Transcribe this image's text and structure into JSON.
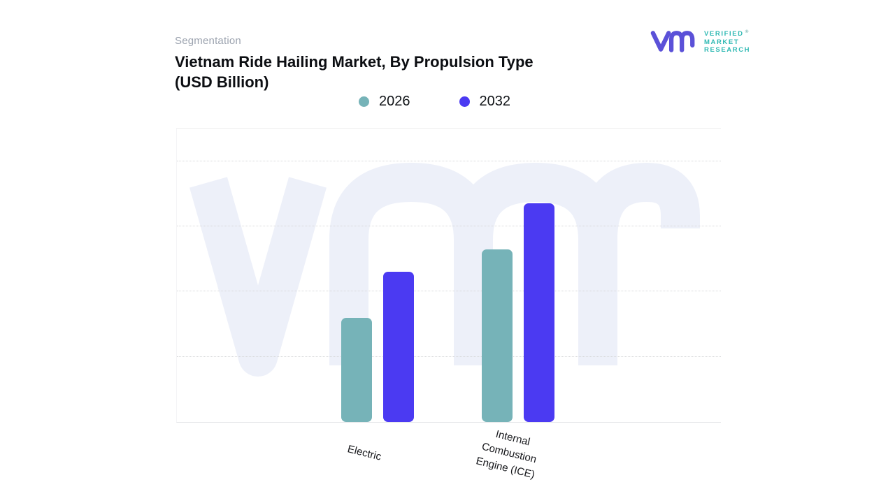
{
  "header": {
    "eyebrow": "Segmentation",
    "title": "Vietnam Ride Hailing Market, By Propulsion Type (USD Billion)",
    "title_lines": [
      "Vietnam Ride Hailing Market, By Propulsion Type",
      "(USD Billion)"
    ]
  },
  "logo": {
    "mark_icon": "vmr-monogram",
    "lines": [
      "VERIFIED",
      "MARKET",
      "RESEARCH"
    ],
    "registered_mark": "®",
    "mark_color": "#5b51d8",
    "text_color": "#2fb9b3"
  },
  "watermark": {
    "icon": "vmr-monogram-watermark",
    "color": "#edf0f9"
  },
  "chart_data": {
    "type": "bar",
    "title": "Vietnam Ride Hailing Market, By Propulsion Type (USD Billion)",
    "xlabel": "",
    "ylabel": "",
    "categories": [
      "Electric",
      "Internal Combustion Engine (ICE)"
    ],
    "category_label_lines": [
      [
        "Electric"
      ],
      [
        "Internal",
        "Combustion",
        "Engine (ICE)"
      ]
    ],
    "series": [
      {
        "name": "2026",
        "color": "#76b3b8",
        "values": [
          1.6,
          2.65
        ]
      },
      {
        "name": "2032",
        "color": "#4b3af2",
        "values": [
          2.3,
          3.35
        ]
      }
    ],
    "value_axis": {
      "visible": false,
      "units": "USD Billion (axis unlabeled; values estimated from gridlines)",
      "ylim": [
        0,
        4.5
      ],
      "gridline_values": [
        1,
        2,
        3,
        4
      ]
    },
    "legend_position": "top-center",
    "grid": "horizontal-dotted"
  }
}
